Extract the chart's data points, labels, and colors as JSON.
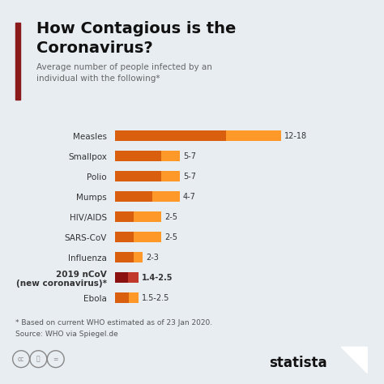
{
  "title_line1": "How Contagious is the",
  "title_line2": "Coronavirus?",
  "subtitle": "Average number of people infected by an\nindividual with the following*",
  "footnote1": "* Based on current WHO estimated as of 23 Jan 2020.",
  "footnote2": "Source: WHO via Spiegel.de",
  "background_color": "#e8edf2",
  "title_bar_color": "#8b1a1a",
  "categories": [
    "Measles",
    "Smallpox",
    "Polio",
    "Mumps",
    "HIV/AIDS",
    "SARS-CoV",
    "Influenza",
    "2019 nCoV\n(new coronavirus)*",
    "Ebola"
  ],
  "low_values": [
    12,
    5,
    5,
    4,
    2,
    2,
    2,
    1.4,
    1.5
  ],
  "high_values": [
    18,
    7,
    7,
    7,
    5,
    5,
    3,
    2.5,
    2.5
  ],
  "labels": [
    "12-18",
    "5-7",
    "5-7",
    "4-7",
    "2-5",
    "2-5",
    "2-3",
    "1.4-2.5",
    "1.5-2.5"
  ],
  "bar_color_dark": [
    "#d95f0e",
    "#d95f0e",
    "#d95f0e",
    "#d95f0e",
    "#d95f0e",
    "#d95f0e",
    "#d95f0e",
    "#8b1010",
    "#d95f0e"
  ],
  "bar_color_light": [
    "#fe9929",
    "#fe9929",
    "#fe9929",
    "#fe9929",
    "#fe9929",
    "#fe9929",
    "#fe9929",
    "#c0392b",
    "#fe9929"
  ],
  "bold_index": 7,
  "xlim": 20,
  "statista_color": "#1a2e6e"
}
